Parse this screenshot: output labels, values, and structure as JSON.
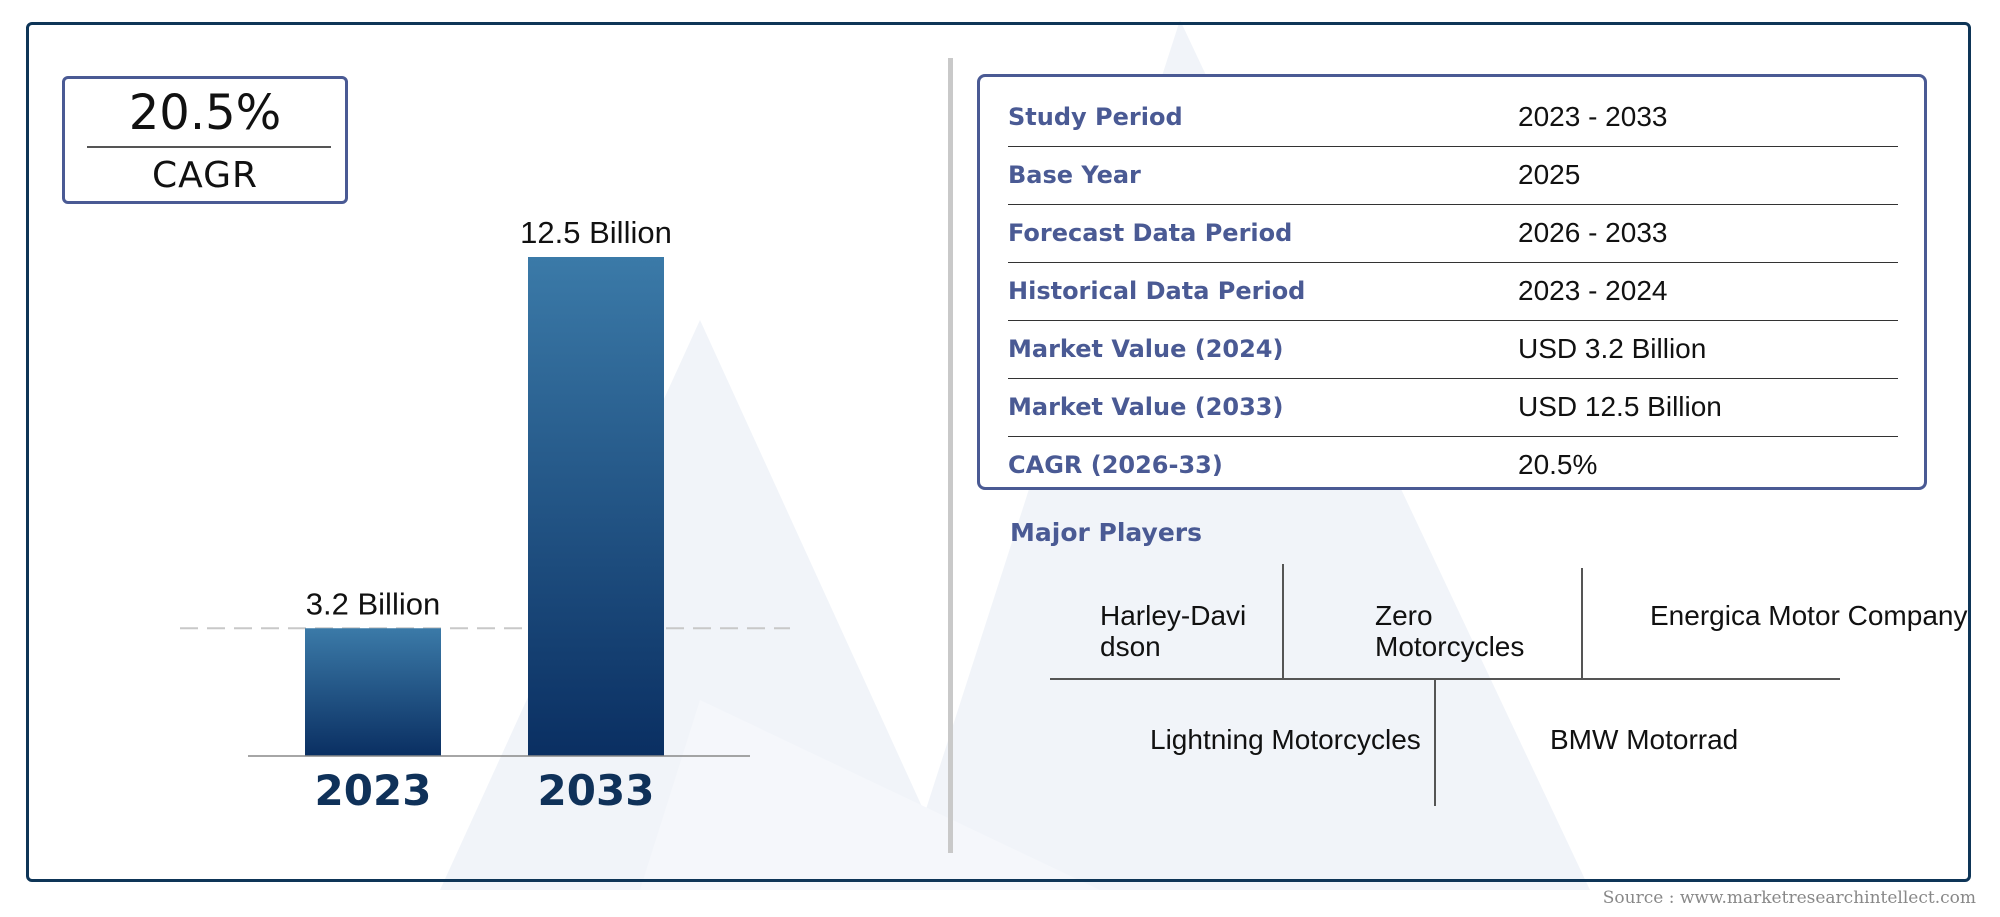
{
  "cagr": {
    "value": "20.5%",
    "label": "CAGR"
  },
  "chart_data": {
    "type": "bar",
    "categories": [
      "2023",
      "2033"
    ],
    "values": [
      3.2,
      12.5
    ],
    "value_labels": [
      "3.2 Billion",
      "12.5 Billion"
    ],
    "title": "",
    "xlabel": "",
    "ylabel": "",
    "ylim": [
      0,
      12.5
    ],
    "grid": false,
    "reference_line_at": 3.2,
    "bar_color_top": "#3b7aa8",
    "bar_color_bottom": "#0a2f62"
  },
  "info_table": {
    "rows": [
      {
        "label": "Study Period",
        "value": "2023 - 2033"
      },
      {
        "label": "Base Year",
        "value": "2025"
      },
      {
        "label": "Forecast Data Period",
        "value": "2026 - 2033"
      },
      {
        "label": "Historical Data Period",
        "value": "2023 - 2024"
      },
      {
        "label": "Market Value (2024)",
        "value": "USD 3.2 Billion"
      },
      {
        "label": "Market Value (2033)",
        "value": "USD 12.5 Billion"
      },
      {
        "label": "CAGR (2026-33)",
        "value": "20.5%"
      }
    ]
  },
  "players": {
    "title": "Major Players",
    "names": [
      "Harley-Davi\ndson",
      "Zero\nMotorcycles",
      "Energica Motor Company",
      "Lightning Motorcycles",
      "BMW Motorrad"
    ]
  },
  "source": "Source : www.marketresearchintellect.com",
  "colors": {
    "frame": "#0e3557",
    "accent": "#4a5a94",
    "watermark": "#eef2f8"
  }
}
